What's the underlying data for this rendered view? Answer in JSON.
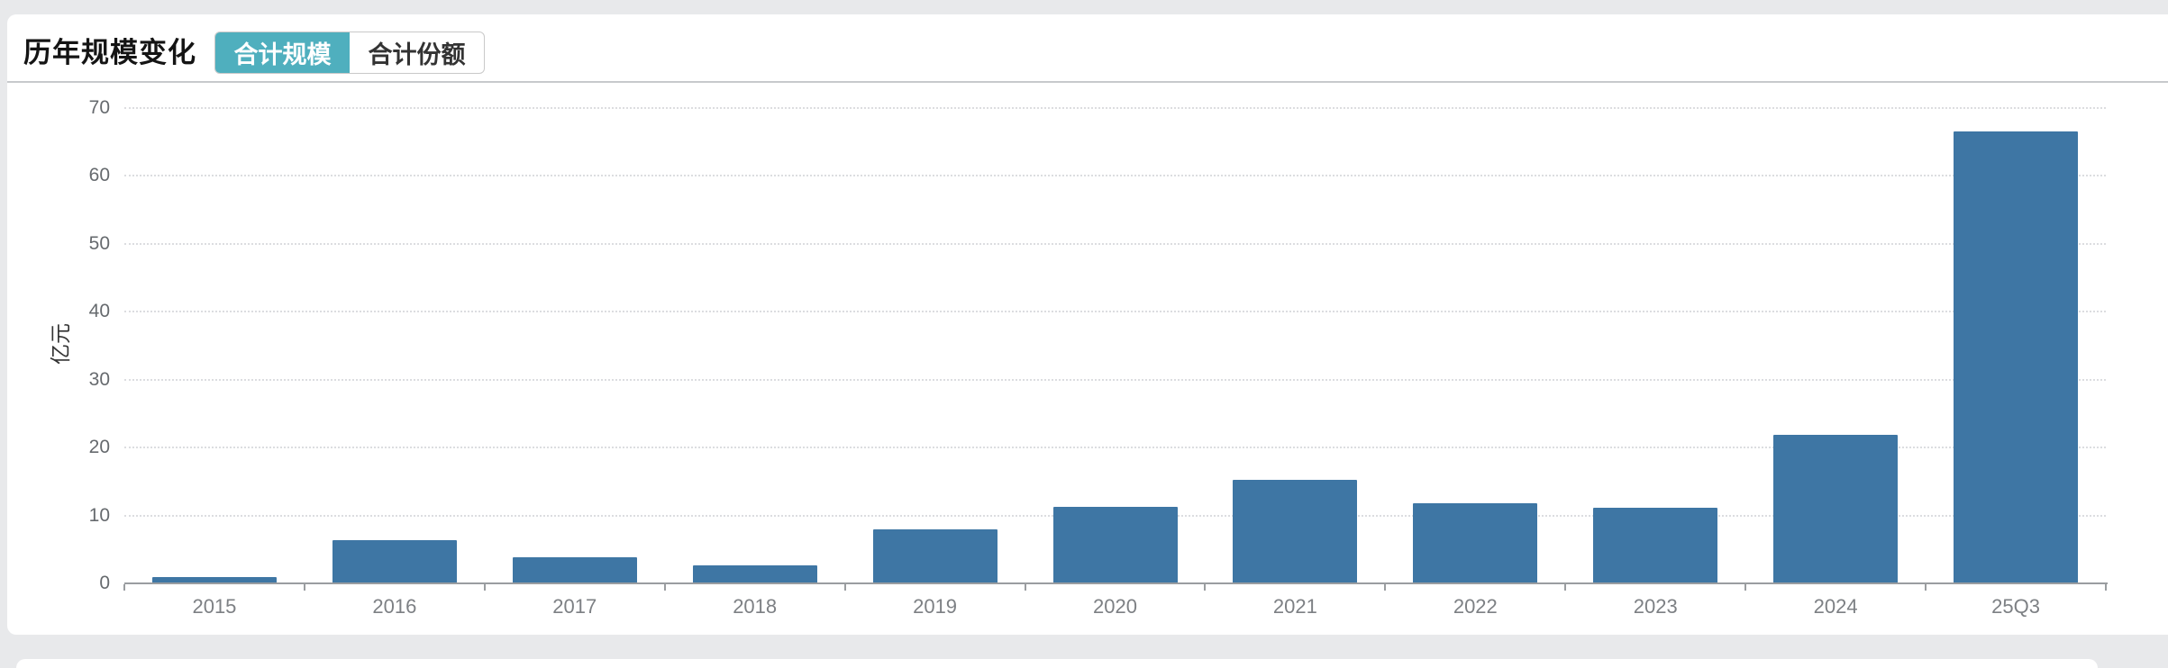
{
  "header": {
    "title": "历年规模变化",
    "tabs": [
      {
        "label": "合计规模",
        "active": true
      },
      {
        "label": "合计份额",
        "active": false
      }
    ],
    "active_tab_color": "#4FAFBE"
  },
  "chart_data": {
    "type": "bar",
    "title": "历年规模变化",
    "categories": [
      "2015",
      "2016",
      "2017",
      "2018",
      "2019",
      "2020",
      "2021",
      "2022",
      "2023",
      "2024",
      "25Q3"
    ],
    "values": [
      0.9,
      6.4,
      3.9,
      2.6,
      7.9,
      11.3,
      15.2,
      11.8,
      11.1,
      21.9,
      66.6
    ],
    "xlabel": "",
    "ylabel": "亿元",
    "ylim": [
      0,
      70
    ],
    "yticks": [
      0,
      10,
      20,
      30,
      40,
      50,
      60,
      70
    ],
    "grid": "horizontal-dotted",
    "legend_position": "none",
    "bar_color": "#3E76A4",
    "axis_line_color": "#9a9da0",
    "gridline_color": "#dcdde0",
    "tick_label_color": "#7d8084"
  },
  "page": {
    "background_color": "#e8e9eb"
  }
}
